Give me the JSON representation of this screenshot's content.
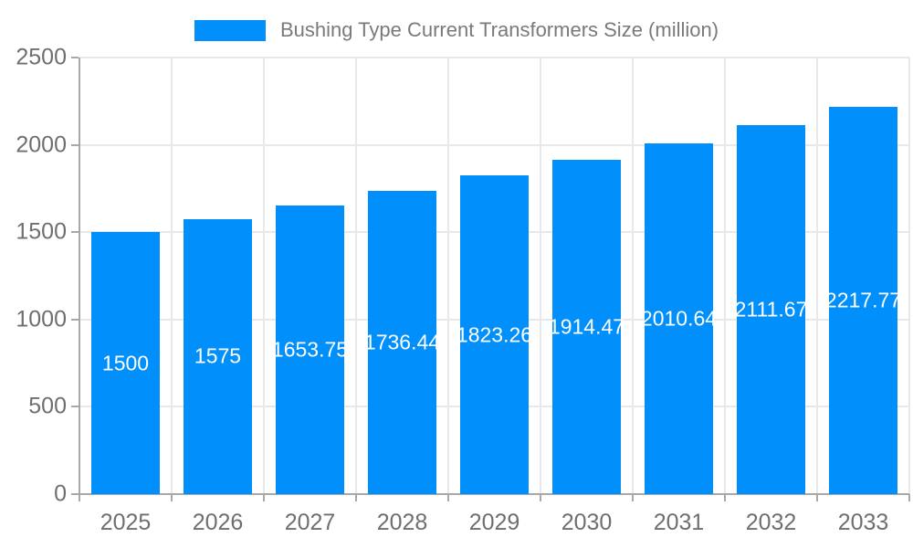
{
  "chart_data": {
    "type": "bar",
    "title": "Bushing Type Current Transformers Size (million)",
    "legend_position": "top",
    "categories": [
      "2025",
      "2026",
      "2027",
      "2028",
      "2029",
      "2030",
      "2031",
      "2032",
      "2033"
    ],
    "values": [
      1500,
      1575,
      1653.75,
      1736.44,
      1823.26,
      1914.47,
      2010.64,
      2111.67,
      2217.77
    ],
    "value_labels": [
      "1500",
      "1575",
      "1653.75",
      "1736.44",
      "1823.26",
      "1914.47",
      "2010.64",
      "2111.67",
      "2217.77"
    ],
    "xlabel": "",
    "ylabel": "",
    "ylim": [
      0,
      2500
    ],
    "yticks": [
      0,
      500,
      1000,
      1500,
      2000,
      2500
    ],
    "ytick_labels": [
      "0",
      "500",
      "1000",
      "1500",
      "2000",
      "2500"
    ],
    "grid": true,
    "data_label_position": "center-of-bar",
    "colors": {
      "bar": "#008FFB",
      "data_label_text": "#ffffff",
      "axis_label_text": "#6f6f6f",
      "legend_text": "#7a7a7a",
      "gridline": "#e8e8e8",
      "axis_line": "#a8a8a8",
      "background": "#ffffff"
    }
  }
}
